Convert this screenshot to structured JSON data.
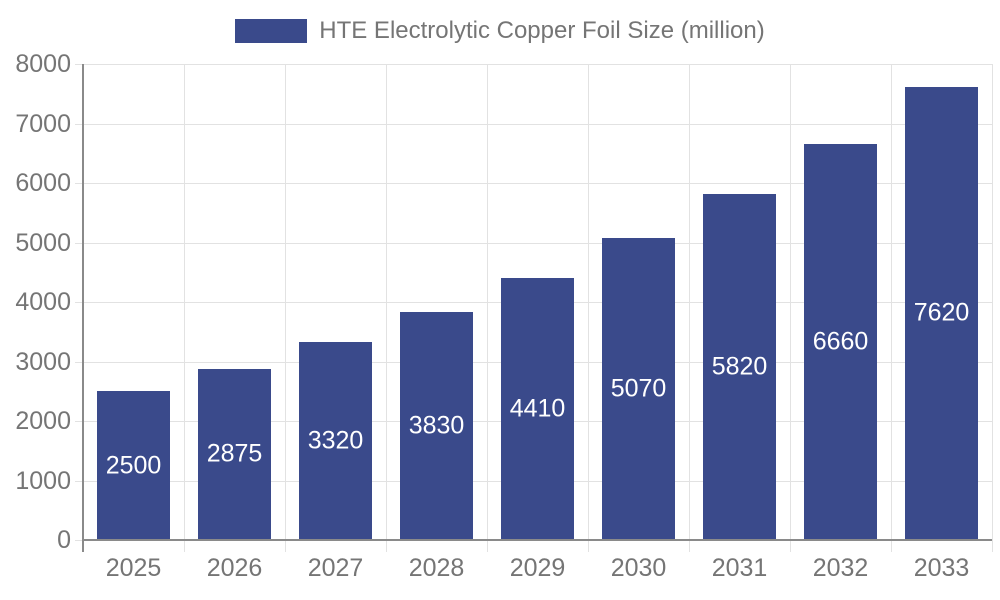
{
  "legend": {
    "label": "HTE Electrolytic Copper Foil Size (million)"
  },
  "chart_data": {
    "type": "bar",
    "title": "HTE Electrolytic Copper Foil Size (million)",
    "categories": [
      "2025",
      "2026",
      "2027",
      "2028",
      "2029",
      "2030",
      "2031",
      "2032",
      "2033"
    ],
    "values": [
      2500,
      2875,
      3320,
      3830,
      4410,
      5070,
      5820,
      6660,
      7620
    ],
    "xlabel": "",
    "ylabel": "",
    "ylim": [
      0,
      8000
    ],
    "ytick_interval": 1000,
    "yticks": [
      0,
      1000,
      2000,
      3000,
      4000,
      5000,
      6000,
      7000,
      8000
    ],
    "grid": true,
    "legend_position": "top-center",
    "bar_label_position": "center-inside",
    "colors": {
      "bar": "#3a4a8b",
      "bar_label": "#ffffff",
      "grid": "#e2e2e2",
      "axis": "#8a8a8a",
      "tick_label": "#757575",
      "background": "#ffffff"
    }
  }
}
